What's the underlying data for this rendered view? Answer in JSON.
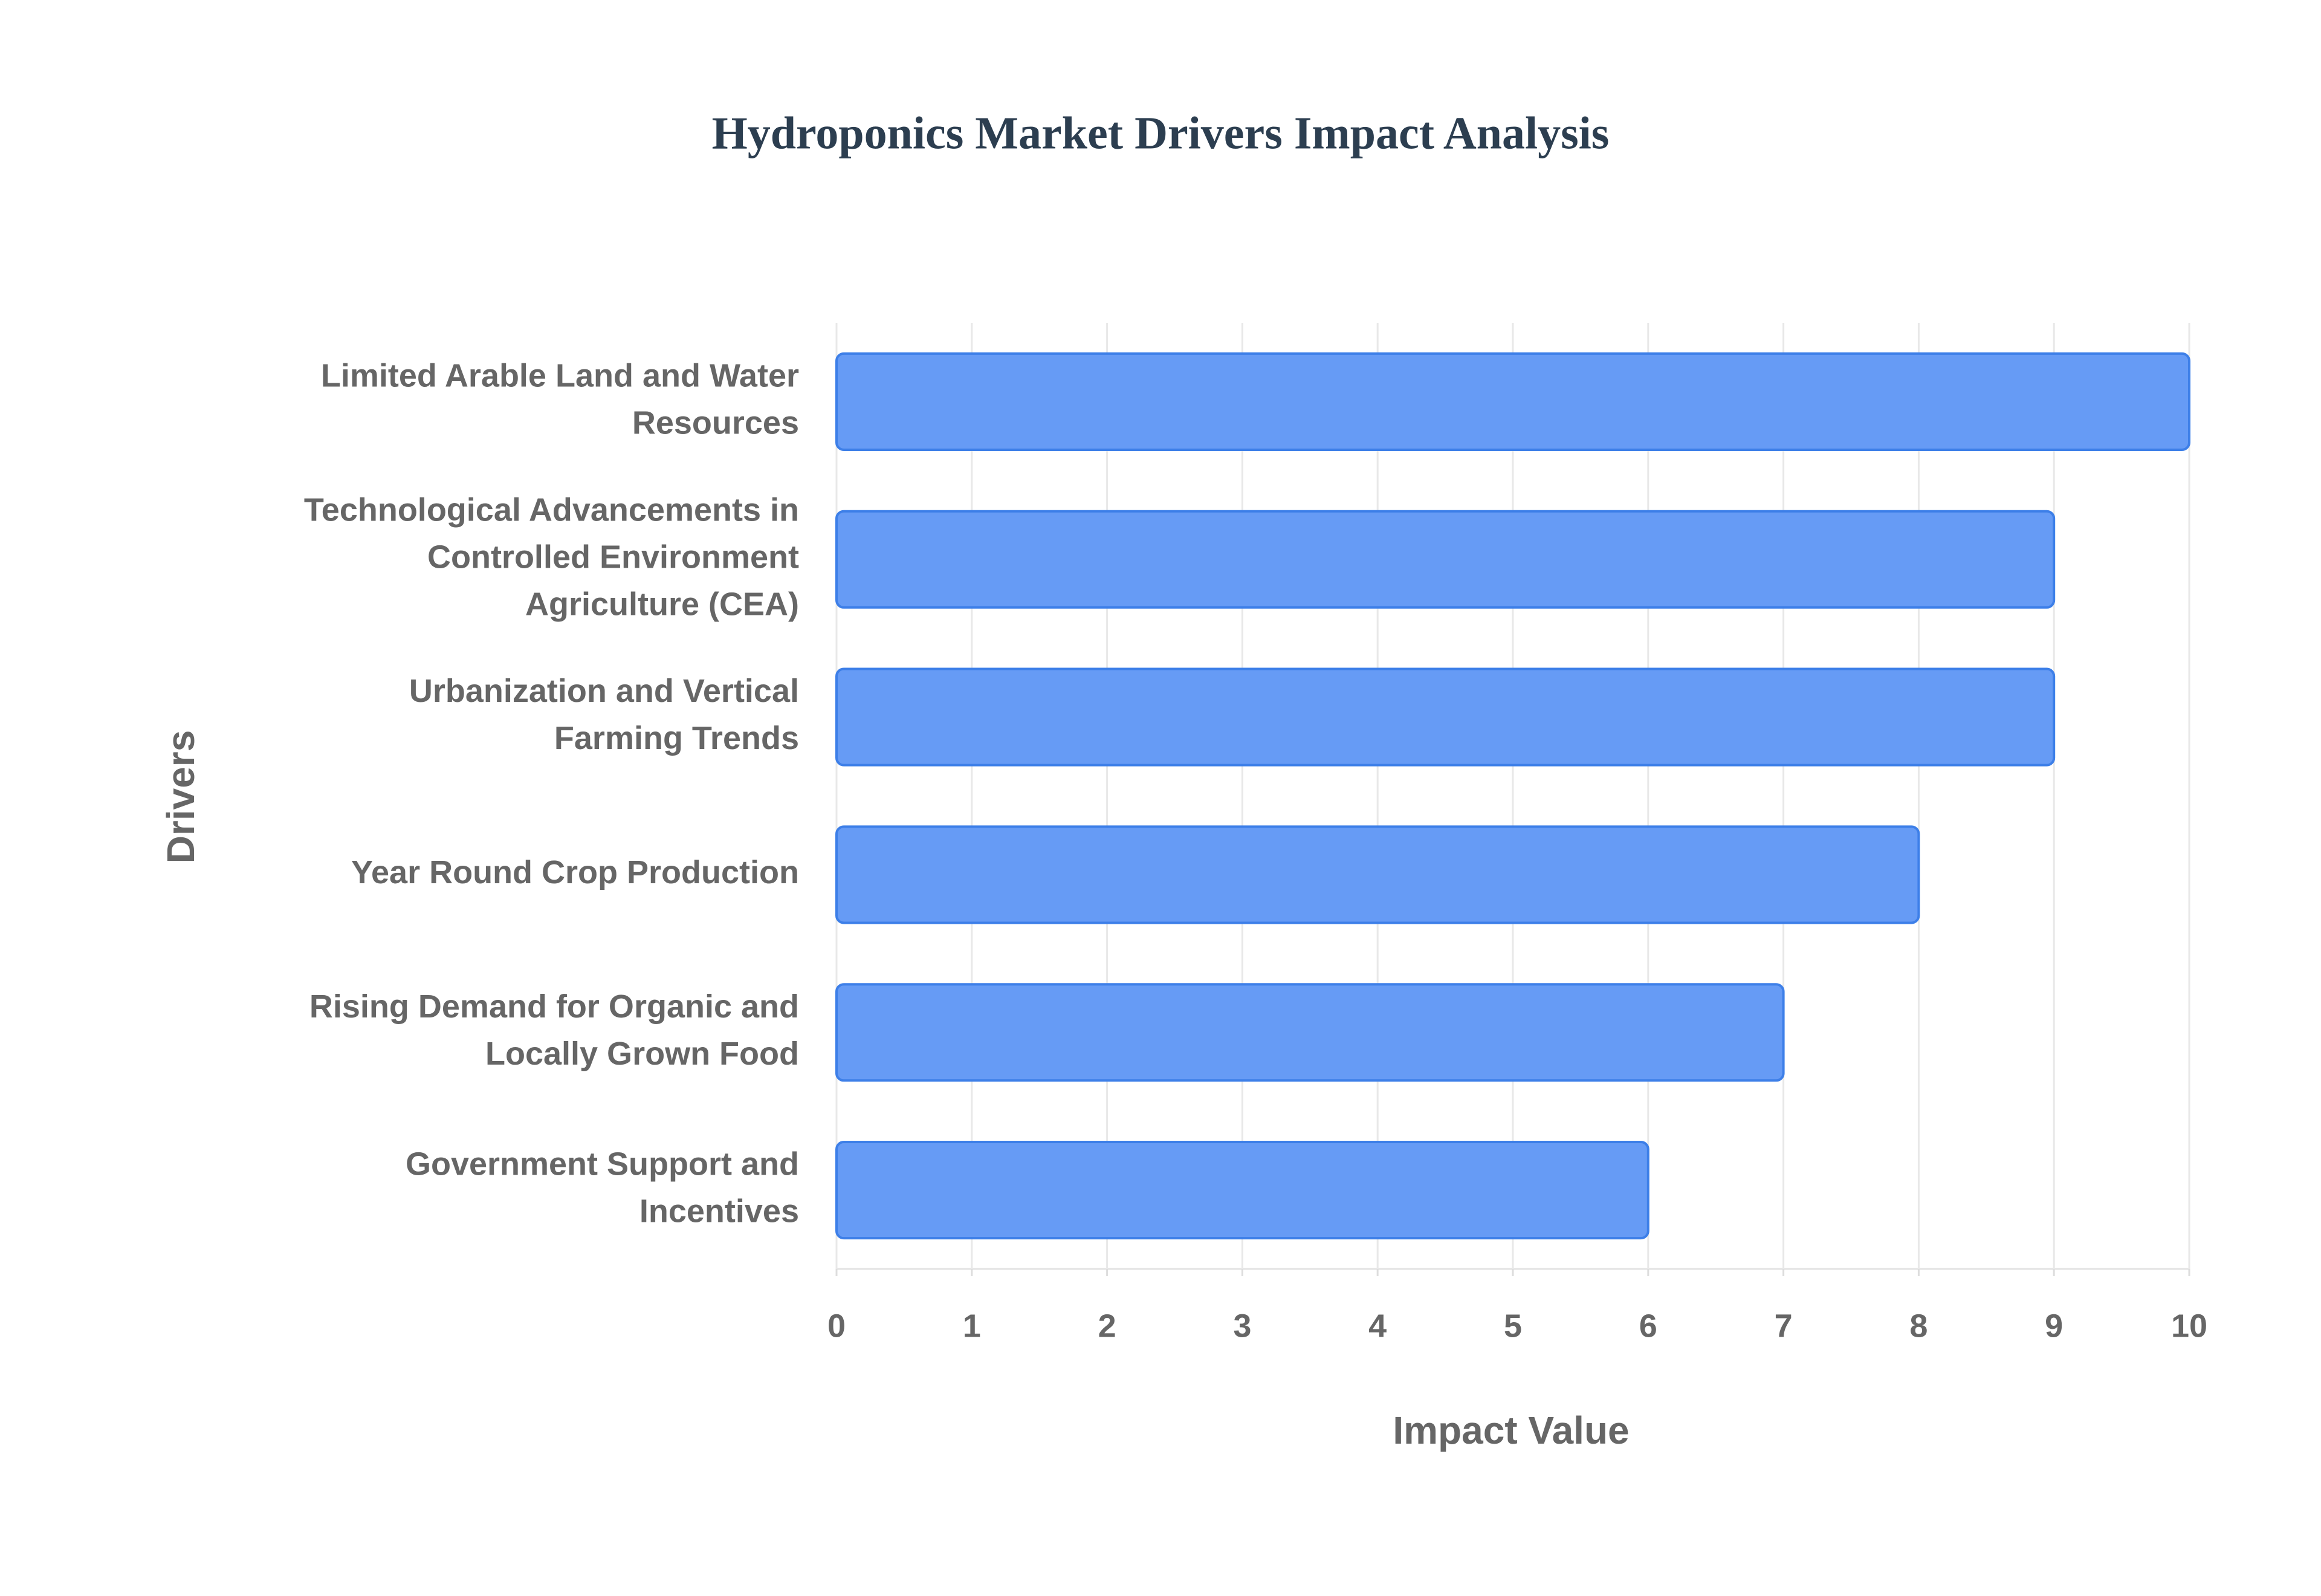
{
  "chart_data": {
    "type": "bar",
    "orientation": "horizontal",
    "title": "Hydroponics Market Drivers Impact Analysis",
    "xlabel": "Impact Value",
    "ylabel": "Drivers",
    "categories": [
      "Limited Arable Land and Water Resources",
      "Technological Advancements in Controlled Environment Agriculture (CEA)",
      "Urbanization and Vertical Farming Trends",
      "Year Round Crop Production",
      "Rising Demand for Organic and Locally Grown Food",
      "Government Support and Incentives"
    ],
    "values": [
      10,
      9,
      9,
      8,
      7,
      6
    ],
    "color": "#6399f5",
    "edge_color": "#3d7fe8",
    "xlim": [
      0,
      10
    ],
    "xticks": [
      0,
      1,
      2,
      3,
      4,
      5,
      6,
      7,
      8,
      9,
      10
    ],
    "grid": true
  }
}
